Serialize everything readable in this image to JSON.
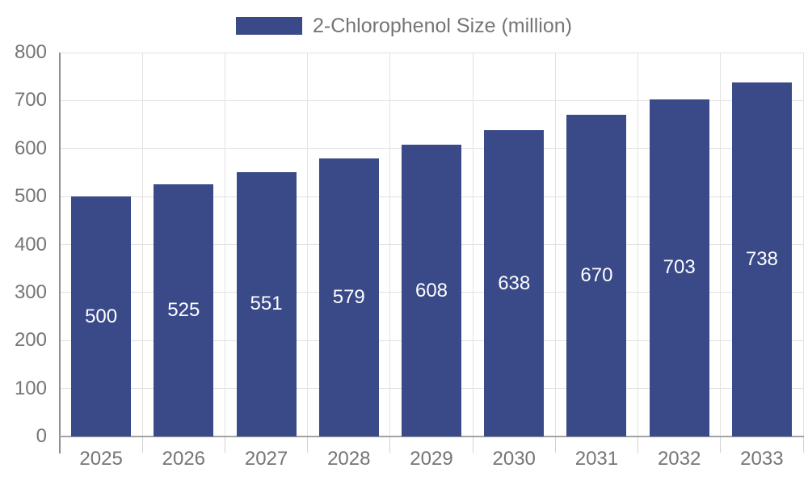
{
  "chart_data": {
    "type": "bar",
    "title": "",
    "series_name": "2-Chlorophenol Size (million)",
    "categories": [
      "2025",
      "2026",
      "2027",
      "2028",
      "2029",
      "2030",
      "2031",
      "2032",
      "2033"
    ],
    "values": [
      500,
      525,
      551,
      579,
      608,
      638,
      670,
      703,
      738
    ],
    "bar_value_labels": [
      "500",
      "525",
      "551",
      "579",
      "608",
      "638",
      "670",
      "703",
      "738"
    ],
    "xlabel": "",
    "ylabel": "",
    "ylim": [
      0,
      800
    ],
    "ytick_step": 100,
    "ytick_labels": [
      "0",
      "100",
      "200",
      "300",
      "400",
      "500",
      "600",
      "700",
      "800"
    ],
    "grid": true,
    "legend_position": "top-center",
    "colors": {
      "bar": "#3A4A89",
      "bar_value_text": "#ffffff",
      "axis_text": "#757575",
      "legend_text": "#757575",
      "gridline": "#e2e2e2",
      "y_axis_line": "#8f8f8f",
      "x_axis_line": "#a3a3a3"
    }
  }
}
